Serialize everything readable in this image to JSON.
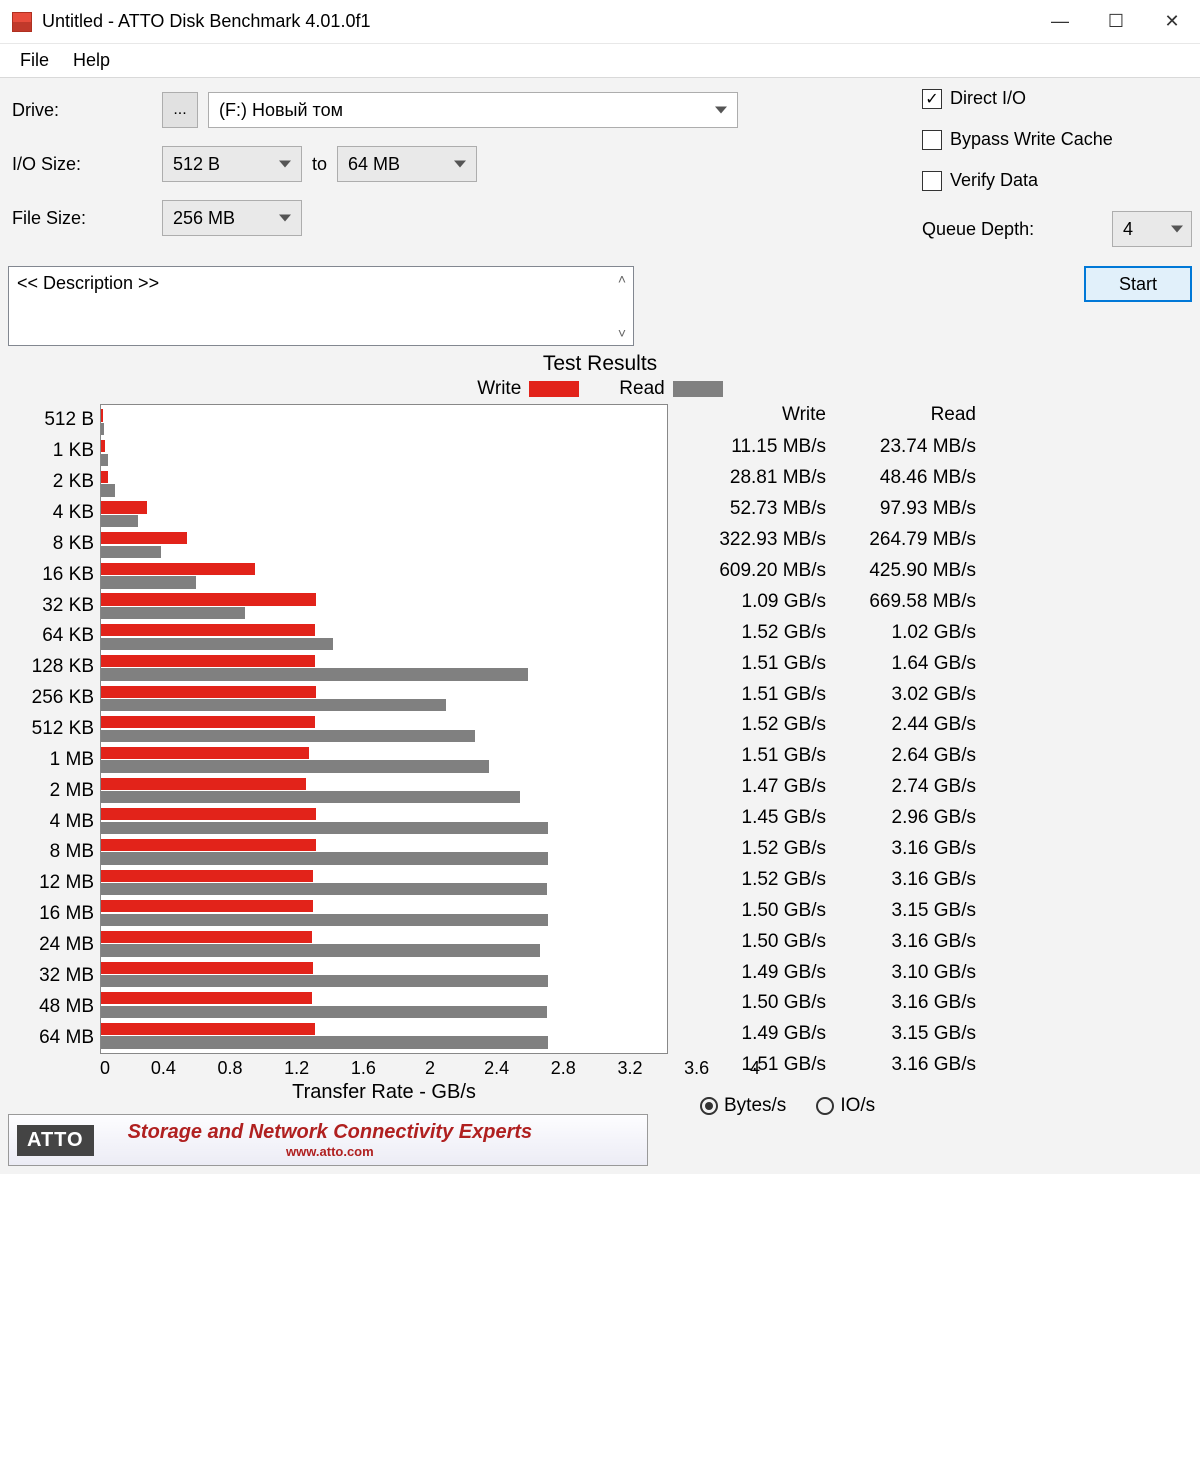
{
  "window": {
    "title": "Untitled - ATTO Disk Benchmark 4.01.0f1",
    "minimize": "—",
    "maximize": "☐",
    "close": "✕"
  },
  "menu": {
    "file": "File",
    "help": "Help"
  },
  "config": {
    "drive_label": "Drive:",
    "browse": "...",
    "drive_value": "(F:) Новый том",
    "io_label": "I/O Size:",
    "io_from": "512 B",
    "to": "to",
    "io_to": "64 MB",
    "filesize_label": "File Size:",
    "filesize_value": "256 MB",
    "direct_io": "Direct I/O",
    "bypass": "Bypass Write Cache",
    "verify": "Verify Data",
    "queue_depth_label": "Queue Depth:",
    "queue_depth_value": "4",
    "description_placeholder": "<< Description >>",
    "start": "Start"
  },
  "results": {
    "title": "Test Results",
    "legend_write": "Write",
    "legend_read": "Read",
    "x_label": "Transfer Rate - GB/s",
    "x_ticks": [
      "0",
      "0.4",
      "0.8",
      "1.2",
      "1.6",
      "2",
      "2.4",
      "2.8",
      "3.2",
      "3.6",
      "4"
    ],
    "x_max_gb": 4.0,
    "colors": {
      "write": "#e2231a",
      "read": "#808080",
      "chart_bg": "#ffffff",
      "chart_border": "#888888"
    },
    "header_write": "Write",
    "header_read": "Read",
    "units": {
      "bytes": "Bytes/s",
      "ios": "IO/s",
      "selected": "bytes"
    },
    "rows": [
      {
        "label": "512 B",
        "write_gb": 0.01115,
        "read_gb": 0.02374,
        "write_text": "11.15 MB/s",
        "read_text": "23.74 MB/s"
      },
      {
        "label": "1 KB",
        "write_gb": 0.02881,
        "read_gb": 0.04846,
        "write_text": "28.81 MB/s",
        "read_text": "48.46 MB/s"
      },
      {
        "label": "2 KB",
        "write_gb": 0.05273,
        "read_gb": 0.09793,
        "write_text": "52.73 MB/s",
        "read_text": "97.93 MB/s"
      },
      {
        "label": "4 KB",
        "write_gb": 0.32293,
        "read_gb": 0.26479,
        "write_text": "322.93 MB/s",
        "read_text": "264.79 MB/s"
      },
      {
        "label": "8 KB",
        "write_gb": 0.6092,
        "read_gb": 0.4259,
        "write_text": "609.20 MB/s",
        "read_text": "425.90 MB/s"
      },
      {
        "label": "16 KB",
        "write_gb": 1.09,
        "read_gb": 0.66958,
        "write_text": "1.09 GB/s",
        "read_text": "669.58 MB/s"
      },
      {
        "label": "32 KB",
        "write_gb": 1.52,
        "read_gb": 1.02,
        "write_text": "1.52 GB/s",
        "read_text": "1.02 GB/s"
      },
      {
        "label": "64 KB",
        "write_gb": 1.51,
        "read_gb": 1.64,
        "write_text": "1.51 GB/s",
        "read_text": "1.64 GB/s"
      },
      {
        "label": "128 KB",
        "write_gb": 1.51,
        "read_gb": 3.02,
        "write_text": "1.51 GB/s",
        "read_text": "3.02 GB/s"
      },
      {
        "label": "256 KB",
        "write_gb": 1.52,
        "read_gb": 2.44,
        "write_text": "1.52 GB/s",
        "read_text": "2.44 GB/s"
      },
      {
        "label": "512 KB",
        "write_gb": 1.51,
        "read_gb": 2.64,
        "write_text": "1.51 GB/s",
        "read_text": "2.64 GB/s"
      },
      {
        "label": "1 MB",
        "write_gb": 1.47,
        "read_gb": 2.74,
        "write_text": "1.47 GB/s",
        "read_text": "2.74 GB/s"
      },
      {
        "label": "2 MB",
        "write_gb": 1.45,
        "read_gb": 2.96,
        "write_text": "1.45 GB/s",
        "read_text": "2.96 GB/s"
      },
      {
        "label": "4 MB",
        "write_gb": 1.52,
        "read_gb": 3.16,
        "write_text": "1.52 GB/s",
        "read_text": "3.16 GB/s"
      },
      {
        "label": "8 MB",
        "write_gb": 1.52,
        "read_gb": 3.16,
        "write_text": "1.52 GB/s",
        "read_text": "3.16 GB/s"
      },
      {
        "label": "12 MB",
        "write_gb": 1.5,
        "read_gb": 3.15,
        "write_text": "1.50 GB/s",
        "read_text": "3.15 GB/s"
      },
      {
        "label": "16 MB",
        "write_gb": 1.5,
        "read_gb": 3.16,
        "write_text": "1.50 GB/s",
        "read_text": "3.16 GB/s"
      },
      {
        "label": "24 MB",
        "write_gb": 1.49,
        "read_gb": 3.1,
        "write_text": "1.49 GB/s",
        "read_text": "3.10 GB/s"
      },
      {
        "label": "32 MB",
        "write_gb": 1.5,
        "read_gb": 3.16,
        "write_text": "1.50 GB/s",
        "read_text": "3.16 GB/s"
      },
      {
        "label": "48 MB",
        "write_gb": 1.49,
        "read_gb": 3.15,
        "write_text": "1.49 GB/s",
        "read_text": "3.15 GB/s"
      },
      {
        "label": "64 MB",
        "write_gb": 1.51,
        "read_gb": 3.16,
        "write_text": "1.51 GB/s",
        "read_text": "3.16 GB/s"
      }
    ]
  },
  "banner": {
    "badge": "ATTO",
    "headline": "Storage and Network Connectivity Experts",
    "url": "www.atto.com"
  }
}
